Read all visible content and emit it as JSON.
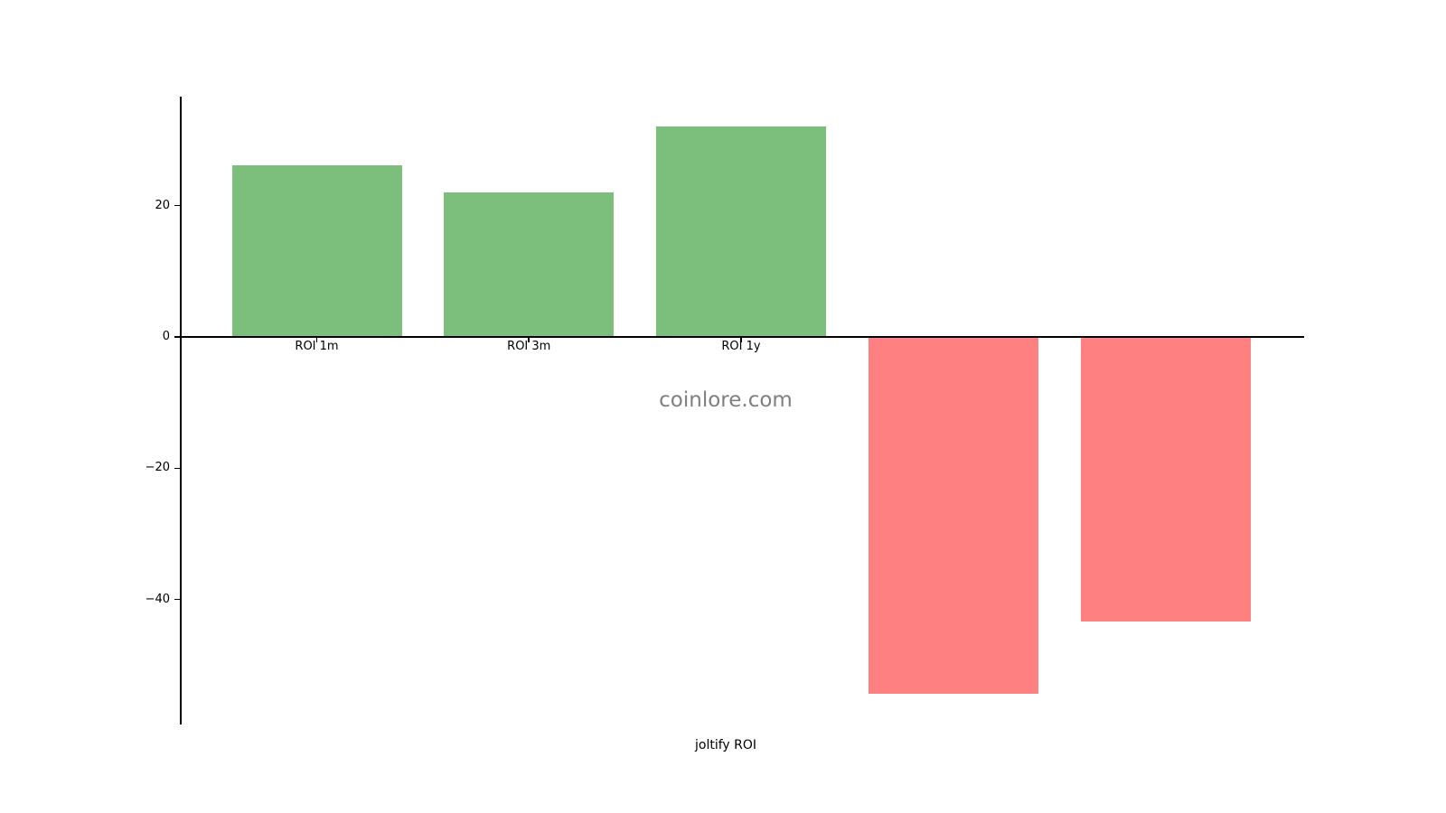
{
  "figure": {
    "background": "#ffffff",
    "watermark": "coinlore.com",
    "watermark_color": "#7f7f7f"
  },
  "chart_data": {
    "type": "bar",
    "title": "",
    "xlabel": "joltify ROI",
    "ylabel": "",
    "categories": [
      "ROI 1m",
      "ROI 3m",
      "ROI 1y",
      "",
      ""
    ],
    "values": [
      26.2,
      22.0,
      32.1,
      -54.4,
      -43.3
    ],
    "positive_color": "#7cbe7c",
    "negative_color": "#ff8080",
    "axis_color": "#000000",
    "y_ticks": [
      20,
      0,
      -20,
      -40
    ],
    "y_tick_labels": [
      "20",
      "0",
      "−20",
      "−40"
    ],
    "ylim": [
      -59,
      36.6
    ],
    "grid": false,
    "legend": false,
    "note": "4th and 5th category tick labels are hidden behind the negative bars"
  }
}
